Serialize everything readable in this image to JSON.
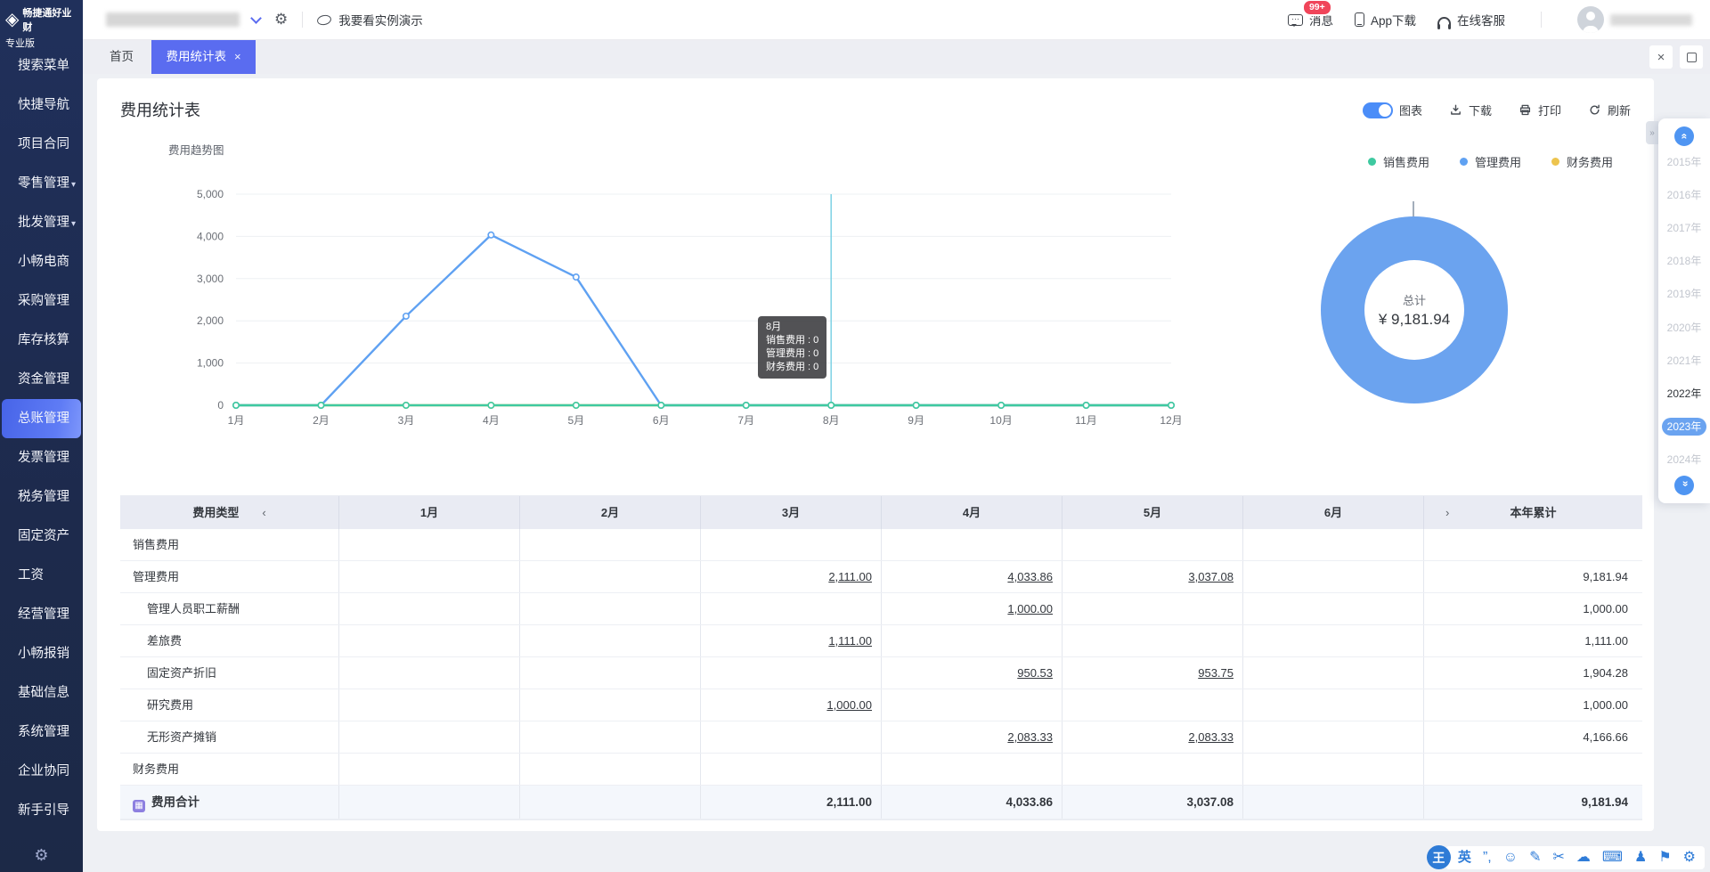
{
  "brand": {
    "name": "畅捷通好业财",
    "edition": "专业版"
  },
  "topbar": {
    "demo": "我要看实例演示",
    "messages": "消息",
    "messages_badge": "99+",
    "app_download": "App下载",
    "online_service": "在线客服"
  },
  "tabs": {
    "home": "首页",
    "current": "费用统计表",
    "close": "×"
  },
  "sidebar": {
    "active_index": 9,
    "items": [
      {
        "label": "搜索菜单"
      },
      {
        "label": "快捷导航"
      },
      {
        "label": "项目合同"
      },
      {
        "label": "零售管理",
        "expandable": true
      },
      {
        "label": "批发管理",
        "expandable": true
      },
      {
        "label": "小畅电商"
      },
      {
        "label": "采购管理"
      },
      {
        "label": "库存核算"
      },
      {
        "label": "资金管理"
      },
      {
        "label": "总账管理"
      },
      {
        "label": "发票管理"
      },
      {
        "label": "税务管理"
      },
      {
        "label": "固定资产"
      },
      {
        "label": "工资"
      },
      {
        "label": "经营管理"
      },
      {
        "label": "小畅报销"
      },
      {
        "label": "基础信息"
      },
      {
        "label": "系统管理"
      },
      {
        "label": "企业协同"
      },
      {
        "label": "新手引导"
      }
    ]
  },
  "page": {
    "title": "费用统计表",
    "toggle_label": "图表",
    "download": "下载",
    "print": "打印",
    "refresh": "刷新"
  },
  "chart_data": [
    {
      "type": "line",
      "title": "费用趋势图",
      "x": [
        "1月",
        "2月",
        "3月",
        "4月",
        "5月",
        "6月",
        "7月",
        "8月",
        "9月",
        "10月",
        "11月",
        "12月"
      ],
      "series": [
        {
          "name": "财务费用",
          "color": "#edc44e",
          "values": [
            0,
            0,
            0,
            0,
            0,
            0,
            0,
            0,
            0,
            0,
            0,
            0
          ]
        },
        {
          "name": "管理费用",
          "color": "#5fa1f2",
          "values": [
            0,
            0,
            2111.0,
            4033.86,
            3037.08,
            0,
            0,
            0,
            0,
            0,
            0,
            0
          ]
        },
        {
          "name": "销售费用",
          "color": "#3ec9a0",
          "values": [
            0,
            0,
            0,
            0,
            0,
            0,
            0,
            0,
            0,
            0,
            0,
            0
          ]
        }
      ],
      "legend_order": [
        "销售费用",
        "管理费用",
        "财务费用"
      ],
      "ylim": [
        0,
        5000
      ],
      "yticks": [
        "0",
        "1,000",
        "2,000",
        "3,000",
        "4,000",
        "5,000"
      ],
      "grid": true,
      "tooltip": {
        "month": "8月",
        "x_index": 7,
        "crosshair_color": "#74cfe2",
        "entries": [
          {
            "name": "销售费用",
            "value": "0"
          },
          {
            "name": "管理费用",
            "value": "0"
          },
          {
            "name": "财务费用",
            "value": "0"
          }
        ]
      }
    },
    {
      "type": "donut",
      "center_label": "总计",
      "center_value": "¥ 9,181.94",
      "slices": [
        {
          "name": "管理费用",
          "value": 9181.94,
          "percent": 100,
          "color": "#6ba3ef"
        }
      ]
    }
  ],
  "year_panel": {
    "years": [
      {
        "label": "2015年",
        "state": "dim"
      },
      {
        "label": "2016年",
        "state": "dim"
      },
      {
        "label": "2017年",
        "state": "dim"
      },
      {
        "label": "2018年",
        "state": "dim"
      },
      {
        "label": "2019年",
        "state": "dim"
      },
      {
        "label": "2020年",
        "state": "dim"
      },
      {
        "label": "2021年",
        "state": "dim"
      },
      {
        "label": "2022年",
        "state": "normal"
      },
      {
        "label": "2023年",
        "state": "active"
      },
      {
        "label": "2024年",
        "state": "dim"
      }
    ],
    "handle": "»"
  },
  "table": {
    "columns": [
      "费用类型",
      "1月",
      "2月",
      "3月",
      "4月",
      "5月",
      "6月",
      "本年累计"
    ],
    "prev_chevron": "‹",
    "next_chevron": "›",
    "rows": [
      {
        "name": "销售费用",
        "indent": 0,
        "values": [
          "",
          "",
          "",
          "",
          "",
          ""
        ],
        "total": ""
      },
      {
        "name": "管理费用",
        "indent": 0,
        "values": [
          "",
          "",
          "2,111.00",
          "4,033.86",
          "3,037.08",
          ""
        ],
        "total": "9,181.94"
      },
      {
        "name": "管理人员职工薪酬",
        "indent": 1,
        "values": [
          "",
          "",
          "",
          "1,000.00",
          "",
          ""
        ],
        "total": "1,000.00"
      },
      {
        "name": "差旅费",
        "indent": 1,
        "values": [
          "",
          "",
          "1,111.00",
          "",
          "",
          ""
        ],
        "total": "1,111.00"
      },
      {
        "name": "固定资产折旧",
        "indent": 1,
        "values": [
          "",
          "",
          "",
          "950.53",
          "953.75",
          ""
        ],
        "total": "1,904.28"
      },
      {
        "name": "研究费用",
        "indent": 1,
        "values": [
          "",
          "",
          "1,000.00",
          "",
          "",
          ""
        ],
        "total": "1,000.00"
      },
      {
        "name": "无形资产摊销",
        "indent": 1,
        "values": [
          "",
          "",
          "",
          "2,083.33",
          "2,083.33",
          ""
        ],
        "total": "4,166.66"
      },
      {
        "name": "财务费用",
        "indent": 0,
        "values": [
          "",
          "",
          "",
          "",
          "",
          ""
        ],
        "total": ""
      },
      {
        "name": "费用合计",
        "indent": 0,
        "footer": true,
        "values": [
          "",
          "",
          "2,111.00",
          "4,033.86",
          "3,037.08",
          ""
        ],
        "total": "9,181.94"
      }
    ]
  },
  "ime": {
    "logo": "王",
    "items": [
      {
        "name": "lang-cn-en-icon",
        "glyph": "英"
      },
      {
        "name": "punctuation-icon",
        "glyph": "”,"
      },
      {
        "name": "emoji-icon",
        "glyph": "☺"
      },
      {
        "name": "handwriting-icon",
        "glyph": "✎"
      },
      {
        "name": "screenshot-icon",
        "glyph": "✂"
      },
      {
        "name": "cloud-icon",
        "glyph": "☁"
      },
      {
        "name": "keyboard-icon",
        "glyph": "⌨"
      },
      {
        "name": "account-icon",
        "glyph": "♟"
      },
      {
        "name": "skin-icon",
        "glyph": "⚑"
      },
      {
        "name": "settings-icon",
        "glyph": "⚙"
      }
    ]
  }
}
